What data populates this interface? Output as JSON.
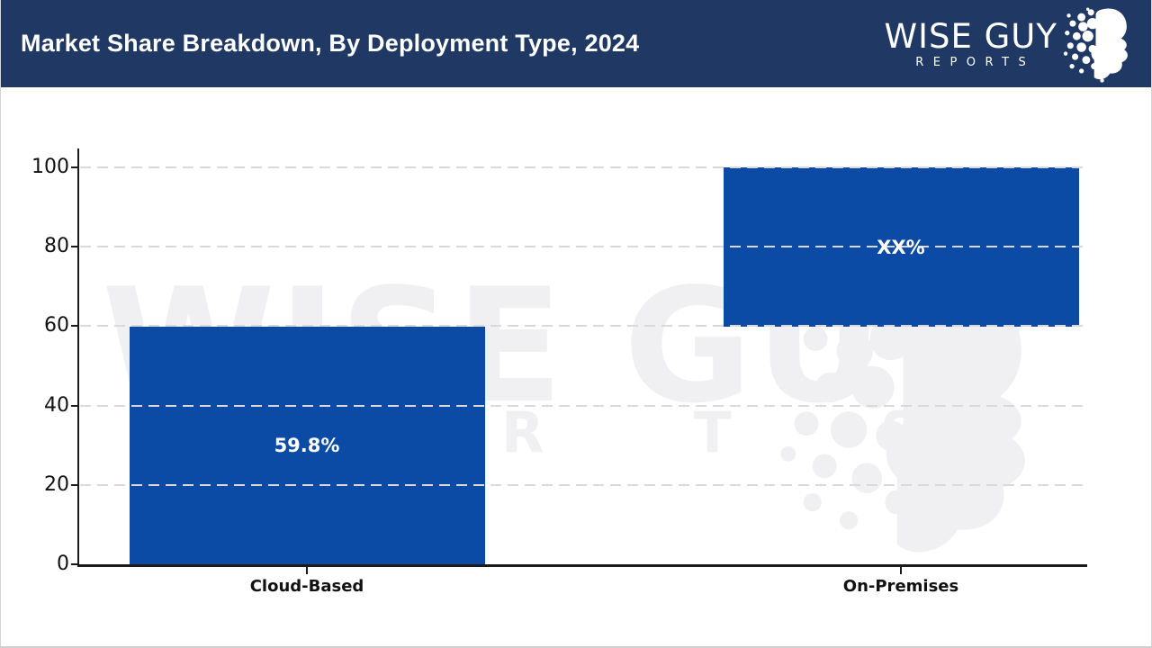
{
  "header": {
    "title": "Market Share Breakdown, By Deployment Type, 2024",
    "logo": {
      "line1": "WISE GUY",
      "line2": "REPORTS"
    }
  },
  "watermark": {
    "line1": "WISE GUY",
    "line2": "R T S"
  },
  "colors": {
    "header_bg": "#1F3864",
    "bar": "#0B4AA5",
    "axis": "#1A1A1A",
    "gridline": "#D9D9D9",
    "tick_text": "#111111",
    "bar_label_text": "#FFFFFF",
    "watermark": "#F0F0F2",
    "page_border": "#D4D4D4"
  },
  "chart_data": {
    "type": "bar",
    "subtype": "floating segment bars (market share split, waterfall style)",
    "title": "Market Share Breakdown, By Deployment Type, 2024",
    "categories": [
      "Cloud-Based",
      "On-Premises"
    ],
    "series": [
      {
        "name": "Market share (%)",
        "segments": [
          {
            "category": "Cloud-Based",
            "from": 0,
            "to": 59.8,
            "value": 59.8,
            "label": "59.8%"
          },
          {
            "category": "On-Premises",
            "from": 59.8,
            "to": 100,
            "value": 40.2,
            "label": "XX%"
          }
        ]
      }
    ],
    "xlabel": "",
    "ylabel": "",
    "yticks": [
      0,
      20,
      40,
      60,
      80,
      100
    ],
    "ylim": [
      0,
      105
    ],
    "grid": "horizontal dashed lines, drawn over bars",
    "legend": "none"
  }
}
